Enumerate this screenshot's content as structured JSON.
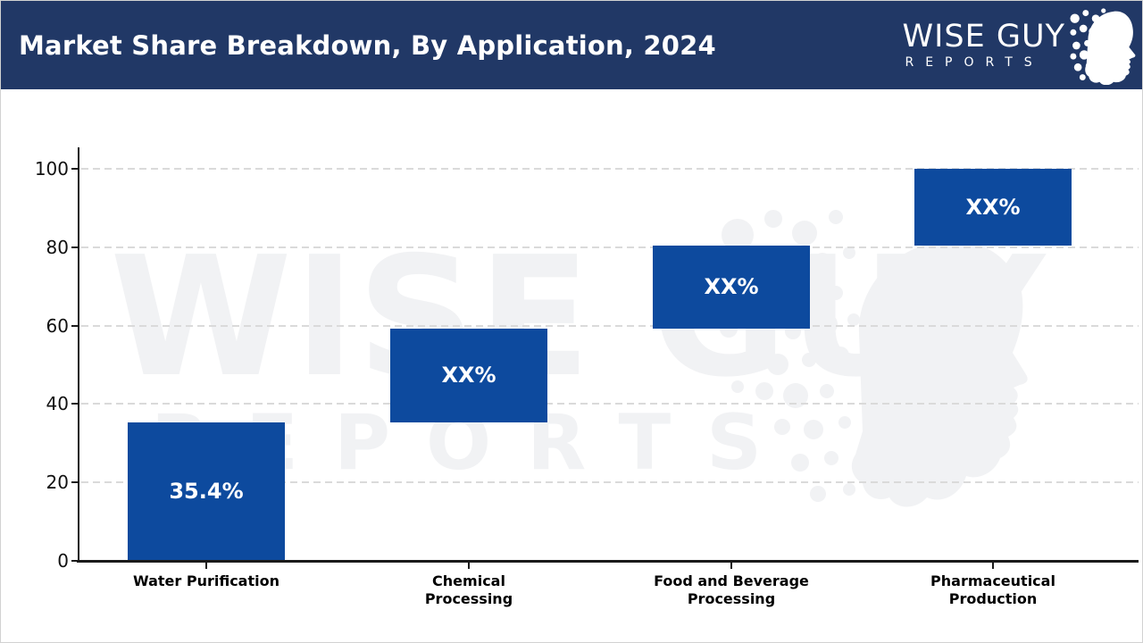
{
  "header": {
    "title": "Market Share Breakdown, By Application, 2024",
    "logo": {
      "name_line": "WISE GUY",
      "sub_line": "REPORTS"
    }
  },
  "watermark": {
    "name_line": "WISE GUY",
    "sub_line": "REPORTS"
  },
  "colors": {
    "header_bg": "#213866",
    "bar": "#0d4a9e",
    "grid": "#dadada",
    "axis": "#1a1a1a",
    "watermark": "#f1f2f4",
    "bar_label_text": "#ffffff"
  },
  "chart_data": {
    "type": "bar",
    "subtype": "waterfall",
    "title": "Market Share Breakdown, By Application, 2024",
    "xlabel": "",
    "ylabel": "",
    "categories": [
      "Water Purification",
      "Chemical Processing",
      "Food and Beverage Processing",
      "Pharmaceutical Production"
    ],
    "category_label_lines": [
      [
        "Water Purification"
      ],
      [
        "Chemical",
        "Processing"
      ],
      [
        "Food and Beverage",
        "Processing"
      ],
      [
        "Pharmaceutical",
        "Production"
      ]
    ],
    "segments": [
      {
        "category": "Water Purification",
        "start": 0,
        "end": 35.4,
        "label": "35.4%"
      },
      {
        "category": "Chemical Processing",
        "start": 35.4,
        "end": 59.2,
        "label": "XX%"
      },
      {
        "category": "Food and Beverage Processing",
        "start": 59.2,
        "end": 80.5,
        "label": "XX%"
      },
      {
        "category": "Pharmaceutical Production",
        "start": 80.5,
        "end": 100,
        "label": "XX%"
      }
    ],
    "yticks": [
      0,
      20,
      40,
      60,
      80,
      100
    ],
    "ylim": [
      0,
      105.5
    ],
    "grid": true,
    "gridstyle": "dashed",
    "legend": false,
    "bar_color": "#0d4a9e",
    "value_label_color": "#ffffff"
  }
}
